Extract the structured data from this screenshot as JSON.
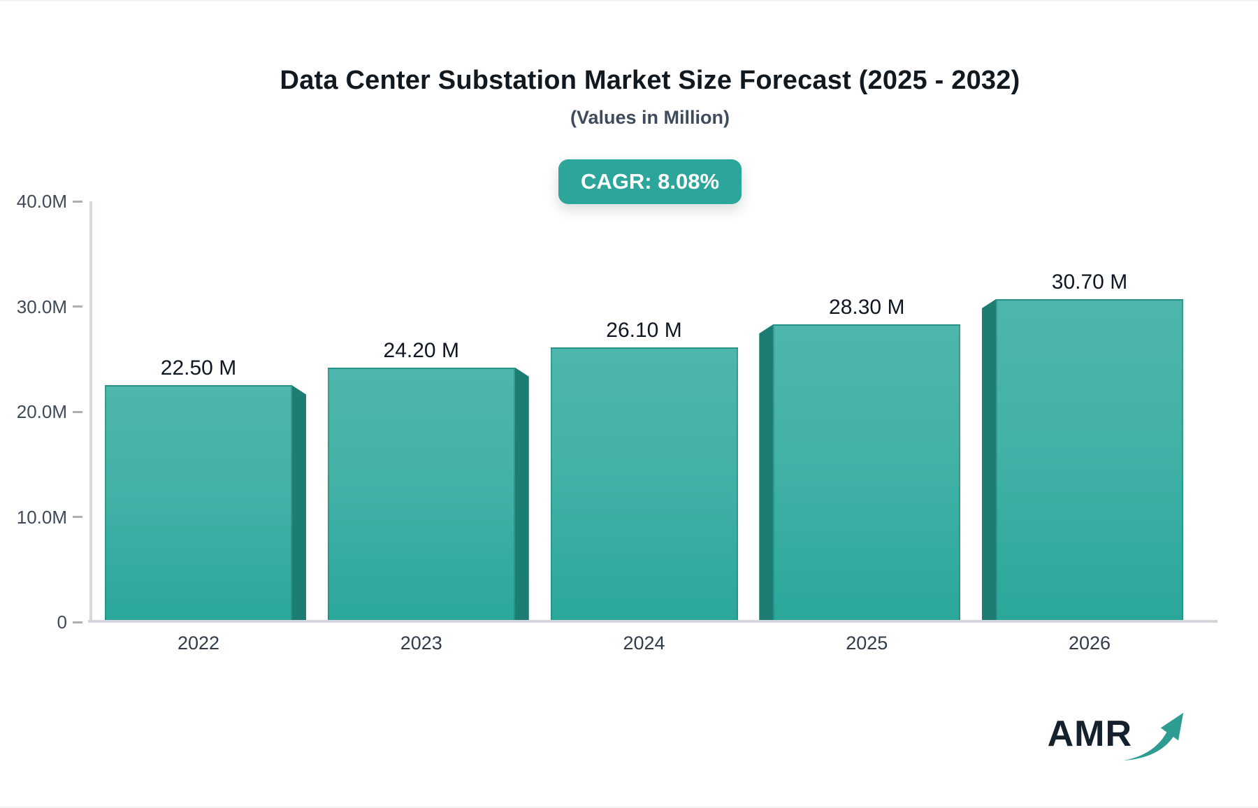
{
  "header": {
    "title": "Data Center Substation Market Size Forecast (2025 - 2032)",
    "subtitle": "(Values in Million)",
    "cagr_badge": "CAGR: 8.08%"
  },
  "chart_data": {
    "type": "bar",
    "title": "Data Center Substation Market Size Forecast (2025 - 2032)",
    "subtitle": "(Values in Million)",
    "annotation": "CAGR: 8.08%",
    "categories": [
      "2022",
      "2023",
      "2024",
      "2025",
      "2026"
    ],
    "values": [
      22.5,
      24.2,
      26.1,
      28.3,
      30.7
    ],
    "value_labels": [
      "22.50 M",
      "24.20 M",
      "26.10 M",
      "28.30 M",
      "30.70 M"
    ],
    "unit": "Million",
    "xlabel": "",
    "ylabel": "",
    "ylim": [
      0,
      40
    ],
    "y_tick_values": [
      0,
      10,
      20,
      30,
      40
    ],
    "y_tick_labels": [
      "0",
      "10.0M",
      "20.0M",
      "30.0M",
      "40.0M"
    ],
    "grid": false,
    "legend": "none",
    "style": {
      "effect": "3d-perspective",
      "bar_face_top_color": "#4eb6ac",
      "bar_face_bottom_color": "#2aa79a",
      "bar_side_color": "#1e7d72",
      "axis_line_color": "#d3d6db",
      "badge_color": "#2ca69a"
    }
  },
  "logo": {
    "text": "AMR",
    "arrow_icon": "growth-arrow-icon",
    "text_color": "#14202c",
    "arrow_color": "#2e9c90"
  }
}
